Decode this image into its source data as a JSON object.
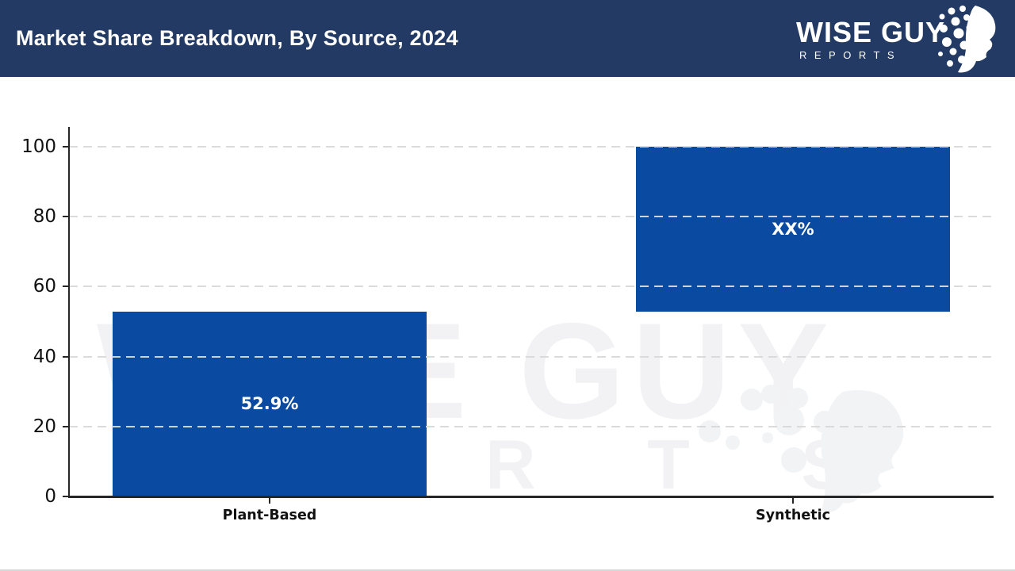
{
  "header": {
    "title": "Market Share Breakdown, By Source, 2024",
    "logo": {
      "line1": "WISE GUY",
      "line2": "REPORTS"
    }
  },
  "watermark": {
    "text_large": "WISE GUY",
    "text_small": "R T S"
  },
  "chart_data": {
    "type": "bar",
    "title": "Market Share Breakdown, By Source, 2024",
    "categories": [
      "Plant-Based",
      "Synthetic"
    ],
    "bars": [
      {
        "category": "Plant-Based",
        "start": 0,
        "end": 52.9,
        "label": "52.9%"
      },
      {
        "category": "Synthetic",
        "start": 52.9,
        "end": 100,
        "label": "XX%"
      }
    ],
    "xlabel": "",
    "ylabel": "",
    "ylim": [
      0,
      105.7
    ],
    "yticks": [
      0,
      20,
      40,
      60,
      80,
      100
    ],
    "grid": "horizontal-dashed",
    "legend": "none"
  },
  "colors": {
    "header_bg": "#223a64",
    "bar": "#0a4aa0",
    "gridline": "#d9d9d9",
    "axis": "#262626",
    "watermark": "#f2f2f4",
    "footer_line": "#d7d7d7",
    "value_label_text": "#ffffff",
    "tick_text": "#111111"
  }
}
